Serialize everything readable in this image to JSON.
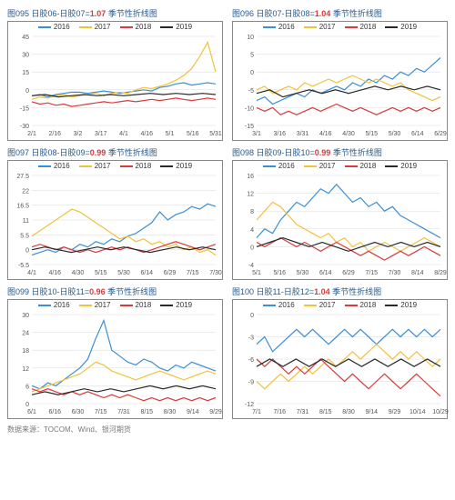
{
  "colors": {
    "s2016": "#3b8fd6",
    "s2017": "#f2c23a",
    "s2018": "#d93a3a",
    "s2019": "#2a2a2a",
    "grid": "#d9d9d9",
    "axis": "#333333",
    "border": "#888888",
    "title": "#2a5a8a",
    "value_pos": "#d93a3a",
    "bg": "#ffffff"
  },
  "legend": [
    "2016",
    "2017",
    "2018",
    "2019"
  ],
  "line_width": 1.2,
  "title_fontsize": 9,
  "tick_fontsize": 7,
  "footer": "数据来源：TOCOM、Wind、银河期货",
  "charts": [
    {
      "id": "c095",
      "title_a": "图095 日胶06-日胶07=",
      "value": "1.07",
      "value_color": "#d93a3a",
      "title_b": " 季节性折线图",
      "ylim": [
        -30,
        45
      ],
      "ytick_step": 15,
      "xlabels": [
        "2/1",
        "2/16",
        "3/2",
        "3/17",
        "4/1",
        "4/16",
        "5/1",
        "5/16",
        "5/31"
      ],
      "series": {
        "2016": [
          -5,
          -4,
          -6,
          -4,
          -3,
          -2,
          -2,
          -3,
          -2,
          -1,
          -2,
          -3,
          -2,
          -1,
          0,
          -1,
          2,
          3,
          5,
          6,
          4,
          5,
          6,
          5
        ],
        "2017": [
          -8,
          -6,
          -7,
          -5,
          -4,
          -6,
          -5,
          -4,
          -3,
          -5,
          -3,
          -2,
          -3,
          0,
          2,
          1,
          3,
          5,
          8,
          12,
          18,
          28,
          40,
          15
        ],
        "2018": [
          -10,
          -12,
          -11,
          -13,
          -12,
          -14,
          -13,
          -12,
          -11,
          -10,
          -11,
          -10,
          -9,
          -10,
          -9,
          -8,
          -9,
          -8,
          -7,
          -8,
          -9,
          -8,
          -7,
          -8
        ],
        "2019": [
          -5,
          -4,
          -6,
          -5,
          -4,
          -5,
          -4,
          -5,
          -4,
          -3,
          -4,
          -3,
          -4,
          -3,
          -4
        ]
      }
    },
    {
      "id": "c096",
      "title_a": "图096 日胶07-日胶08=",
      "value": "1.04",
      "value_color": "#d93a3a",
      "title_b": " 季节性折线图",
      "ylim": [
        -15,
        10
      ],
      "ytick_step": 5,
      "xlabels": [
        "3/1",
        "3/16",
        "3/31",
        "4/16",
        "4/30",
        "5/15",
        "5/30",
        "6/14",
        "6/29"
      ],
      "series": {
        "2016": [
          -8,
          -7,
          -9,
          -8,
          -7,
          -6,
          -7,
          -5,
          -6,
          -5,
          -4,
          -5,
          -3,
          -4,
          -2,
          -3,
          -1,
          -2,
          0,
          -1,
          1,
          0,
          2,
          4
        ],
        "2017": [
          -5,
          -4,
          -6,
          -5,
          -4,
          -5,
          -3,
          -4,
          -3,
          -2,
          -3,
          -2,
          -1,
          -2,
          -3,
          -2,
          -3,
          -4,
          -3,
          -5,
          -6,
          -7,
          -8,
          -7
        ],
        "2018": [
          -10,
          -11,
          -10,
          -12,
          -11,
          -12,
          -11,
          -10,
          -11,
          -10,
          -9,
          -10,
          -11,
          -10,
          -11,
          -12,
          -11,
          -10,
          -11,
          -10,
          -11,
          -10,
          -11,
          -10
        ],
        "2019": [
          -6,
          -5,
          -7,
          -6,
          -5,
          -6,
          -5,
          -6,
          -5,
          -4,
          -5,
          -4,
          -5,
          -4,
          -5
        ]
      }
    },
    {
      "id": "c097",
      "title_a": "图097 日胶08-日胶09=",
      "value": "0.99",
      "value_color": "#d93a3a",
      "title_b": " 季节性折线图",
      "ylim": [
        -5.5,
        27.5
      ],
      "ytick_step": 5.5,
      "xlabels": [
        "4/1",
        "4/16",
        "4/30",
        "5/15",
        "5/30",
        "6/14",
        "6/29",
        "7/15",
        "7/30"
      ],
      "series": {
        "2016": [
          -2,
          -1,
          0,
          -1,
          1,
          0,
          2,
          1,
          3,
          2,
          4,
          3,
          5,
          6,
          8,
          10,
          14,
          11,
          13,
          14,
          16,
          15,
          17,
          16
        ],
        "2017": [
          5,
          7,
          9,
          11,
          13,
          15,
          14,
          12,
          10,
          8,
          6,
          4,
          5,
          3,
          4,
          2,
          3,
          1,
          2,
          0,
          1,
          -1,
          0,
          -2
        ],
        "2018": [
          1,
          2,
          1,
          0,
          1,
          0,
          -1,
          0,
          -1,
          0,
          1,
          0,
          1,
          0,
          -1,
          0,
          1,
          2,
          3,
          2,
          1,
          0,
          1,
          2
        ],
        "2019": [
          0,
          1,
          0,
          -1,
          0,
          1,
          0,
          1,
          0,
          -1,
          0,
          1,
          0,
          1,
          0
        ]
      }
    },
    {
      "id": "c098",
      "title_a": "图098 日胶09-日胶10=",
      "value": "0.99",
      "value_color": "#d93a3a",
      "title_b": " 季节性折线图",
      "ylim": [
        -4,
        16
      ],
      "ytick_step": 4,
      "xlabels": [
        "5/1",
        "5/16",
        "5/30",
        "6/14",
        "6/29",
        "7/15",
        "7/30",
        "8/14",
        "8/29"
      ],
      "series": {
        "2016": [
          2,
          4,
          3,
          6,
          8,
          10,
          9,
          11,
          13,
          12,
          14,
          12,
          10,
          11,
          9,
          10,
          8,
          9,
          7,
          6,
          5,
          4,
          3,
          2
        ],
        "2017": [
          6,
          8,
          10,
          9,
          7,
          5,
          4,
          3,
          2,
          3,
          1,
          2,
          0,
          1,
          -1,
          0,
          1,
          0,
          -1,
          0,
          1,
          2,
          1,
          0
        ],
        "2018": [
          1,
          0,
          1,
          2,
          1,
          0,
          1,
          0,
          -1,
          0,
          1,
          0,
          -1,
          -2,
          -1,
          -2,
          -3,
          -2,
          -1,
          -2,
          -1,
          0,
          -1,
          -2
        ],
        "2019": [
          0,
          1,
          2,
          1,
          0,
          1,
          0,
          -1,
          0,
          1,
          0,
          1,
          0,
          1,
          0
        ]
      }
    },
    {
      "id": "c099",
      "title_a": "图099 日胶10-日胶11=",
      "value": "0.96",
      "value_color": "#d93a3a",
      "title_b": " 季节性折线图",
      "ylim": [
        0,
        30
      ],
      "ytick_step": 6,
      "xlabels": [
        "6/1",
        "6/16",
        "6/30",
        "7/15",
        "7/31",
        "8/15",
        "8/30",
        "9/14",
        "9/29"
      ],
      "series": {
        "2016": [
          6,
          5,
          7,
          6,
          8,
          10,
          12,
          15,
          22,
          28,
          18,
          16,
          14,
          13,
          15,
          14,
          12,
          11,
          13,
          12,
          14,
          13,
          12,
          11
        ],
        "2017": [
          4,
          5,
          6,
          7,
          8,
          9,
          10,
          12,
          14,
          13,
          11,
          10,
          9,
          8,
          9,
          10,
          11,
          10,
          9,
          8,
          9,
          10,
          11,
          10
        ],
        "2018": [
          5,
          4,
          5,
          4,
          3,
          4,
          3,
          4,
          3,
          2,
          3,
          2,
          3,
          2,
          1,
          2,
          1,
          2,
          1,
          2,
          1,
          2,
          1,
          2
        ],
        "2019": [
          3,
          4,
          3,
          4,
          5,
          4,
          5,
          4,
          5,
          6,
          5,
          6,
          5,
          6,
          5
        ]
      }
    },
    {
      "id": "c100",
      "title_a": "图100 日胶11-日胶12=",
      "value": "1.04",
      "value_color": "#d93a3a",
      "title_b": " 季节性折线图",
      "ylim": [
        -12,
        0
      ],
      "ytick_step": 3,
      "xlabels": [
        "7/1",
        "7/16",
        "7/31",
        "8/15",
        "8/30",
        "9/14",
        "9/29",
        "10/14",
        "10/29"
      ],
      "series": {
        "2016": [
          -4,
          -3,
          -5,
          -4,
          -3,
          -2,
          -3,
          -2,
          -3,
          -4,
          -3,
          -2,
          -3,
          -2,
          -3,
          -4,
          -3,
          -2,
          -3,
          -2,
          -3,
          -2,
          -3,
          -2
        ],
        "2017": [
          -9,
          -10,
          -9,
          -8,
          -9,
          -8,
          -7,
          -8,
          -7,
          -6,
          -7,
          -6,
          -5,
          -6,
          -5,
          -4,
          -5,
          -6,
          -5,
          -6,
          -5,
          -6,
          -7,
          -6
        ],
        "2018": [
          -6,
          -7,
          -6,
          -7,
          -8,
          -7,
          -8,
          -7,
          -6,
          -7,
          -8,
          -9,
          -8,
          -9,
          -10,
          -9,
          -8,
          -9,
          -10,
          -9,
          -8,
          -9,
          -10,
          -11
        ],
        "2019": [
          -7,
          -6,
          -7,
          -6,
          -7,
          -6,
          -7,
          -6,
          -7,
          -6,
          -7,
          -6,
          -7,
          -6,
          -7
        ]
      }
    }
  ]
}
